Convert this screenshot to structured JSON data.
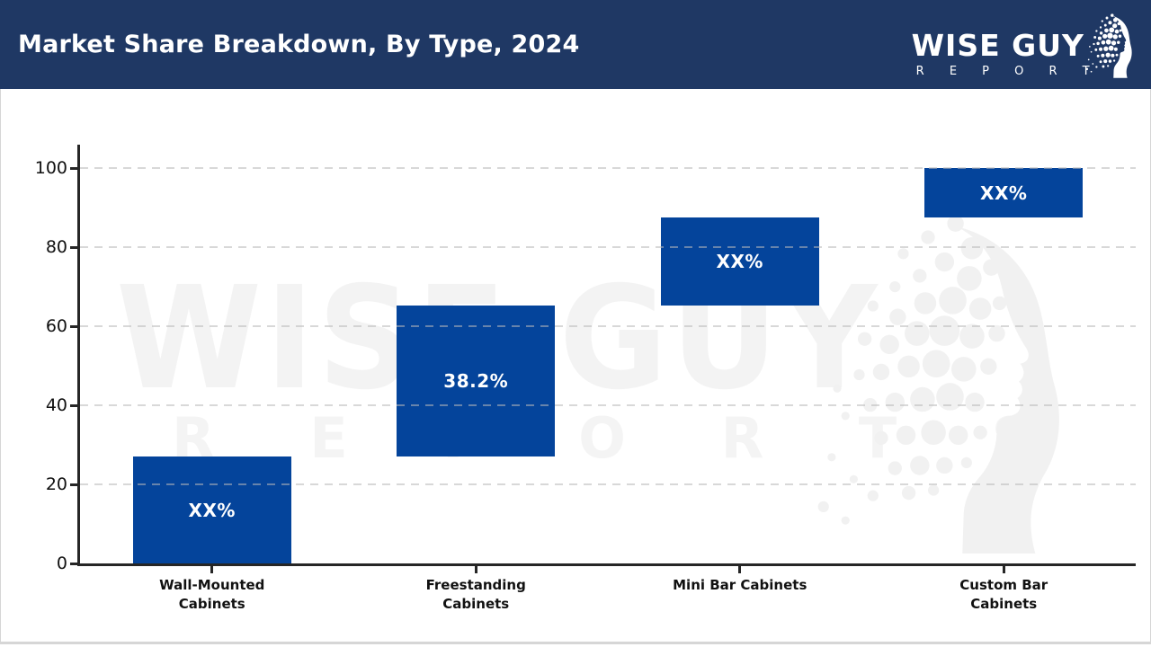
{
  "header": {
    "title": "Market Share Breakdown, By Type, 2024",
    "logo": {
      "name": "WISE GUY",
      "sub": "R E P O R T S"
    }
  },
  "watermark": {
    "name": "WISE GUY",
    "sub": "R E P O R T S"
  },
  "chart_data": {
    "type": "bar",
    "subtype": "floating-waterfall-percent",
    "title": "Market Share Breakdown, By Type, 2024",
    "categories": [
      "Wall-Mounted Cabinets",
      "Freestanding Cabinets",
      "Mini Bar Cabinets",
      "Custom Bar Cabinets"
    ],
    "category_lines": [
      [
        "Wall-Mounted",
        "Cabinets"
      ],
      [
        "Freestanding",
        "Cabinets"
      ],
      [
        "Mini Bar Cabinets"
      ],
      [
        "Custom Bar",
        "Cabinets"
      ]
    ],
    "segments": [
      {
        "category": "Wall-Mounted Cabinets",
        "start": 0,
        "end": 27,
        "value_label": "XX%",
        "value_est": 27
      },
      {
        "category": "Freestanding Cabinets",
        "start": 27,
        "end": 65.2,
        "value_label": "38.2%",
        "value_est": 38.2
      },
      {
        "category": "Mini Bar Cabinets",
        "start": 65.2,
        "end": 87.5,
        "value_label": "XX%",
        "value_est": 22.3
      },
      {
        "category": "Custom Bar Cabinets",
        "start": 87.5,
        "end": 100,
        "value_label": "XX%",
        "value_est": 12.5
      }
    ],
    "yticks": [
      0,
      20,
      40,
      60,
      80,
      100
    ],
    "ylim": [
      0,
      106
    ],
    "grid": "dashed-horizontal",
    "legend": "none",
    "bar_color": "#04449b",
    "bar_label_color": "#ffffff"
  },
  "colors": {
    "header_bg": "#1f3864",
    "page_bg": "#ffffff",
    "bar": "#04449b",
    "grid": "#e2e2e2",
    "axis": "#262626",
    "text": "#111111",
    "watermark": "#f3f3f3",
    "border": "#d6d6d6"
  }
}
